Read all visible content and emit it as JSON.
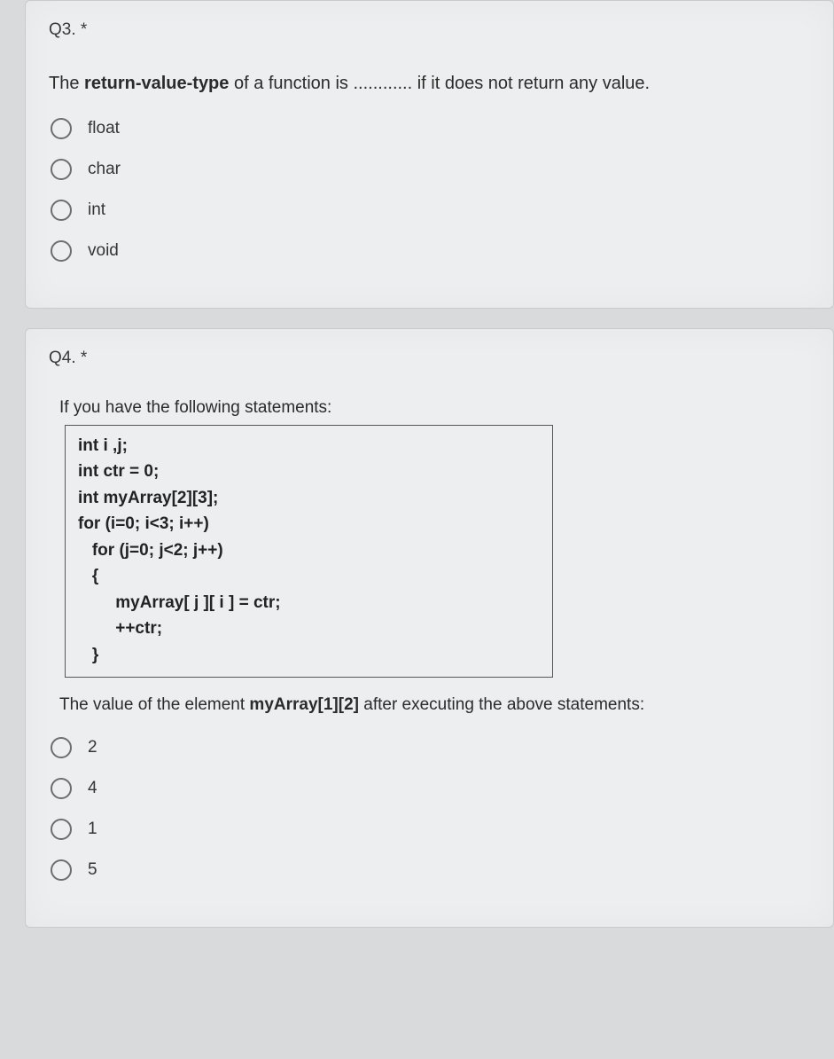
{
  "q3": {
    "label": "Q3.",
    "required_mark": "*",
    "prompt_pre": "The ",
    "prompt_bold": "return-value-type",
    "prompt_mid": " of a function is ",
    "prompt_blank": "............",
    "prompt_post": " if it does not return any value.",
    "options": [
      "float",
      "char",
      "int",
      "void"
    ]
  },
  "q4": {
    "label": "Q4.",
    "required_mark": "*",
    "intro": "If you have the following statements:",
    "code": [
      "int i ,j;",
      "int ctr = 0;",
      "int myArray[2][3];",
      "for (i=0; i<3; i++)",
      "   for (j=0; j<2; j++)",
      "   {",
      "        myArray[ j ][ i ] = ctr;",
      "        ++ctr;",
      "   }"
    ],
    "result_pre": "The value of the element ",
    "result_bold": "myArray[1][2]",
    "result_post": " after executing the above statements:",
    "options": [
      "2",
      "4",
      "1",
      "5"
    ]
  }
}
